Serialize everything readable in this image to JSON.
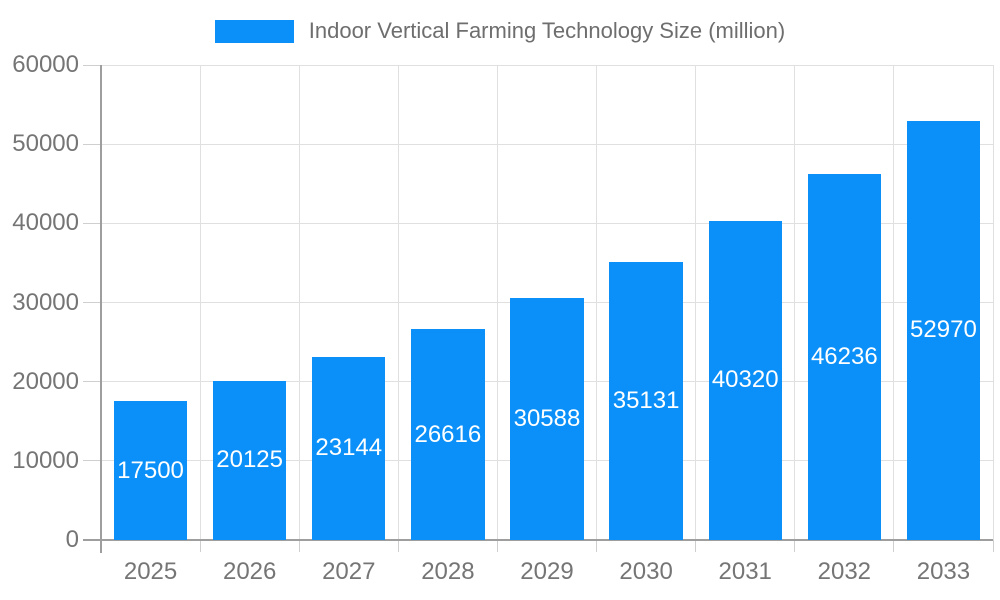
{
  "chart_data": {
    "type": "bar",
    "title": "Indoor Vertical Farming Technology Size (million)",
    "categories": [
      "2025",
      "2026",
      "2027",
      "2028",
      "2029",
      "2030",
      "2031",
      "2032",
      "2033"
    ],
    "values": [
      17500,
      20125,
      23144,
      26616,
      30588,
      35131,
      40320,
      46236,
      52970
    ],
    "xlabel": "",
    "ylabel": "",
    "ylim": [
      0,
      60000
    ],
    "yticks": [
      0,
      10000,
      20000,
      30000,
      40000,
      50000,
      60000
    ],
    "grid": true,
    "legend_position": "top",
    "colors": {
      "bar": "#0a90f8",
      "bar_label": "#ffffff",
      "axis_text": "#757575",
      "legend_text": "#6e6e6e",
      "grid": "#e0e0e0",
      "tick": "#cfcfcf",
      "axis_line": "#9e9e9e",
      "background": "#ffffff"
    }
  }
}
